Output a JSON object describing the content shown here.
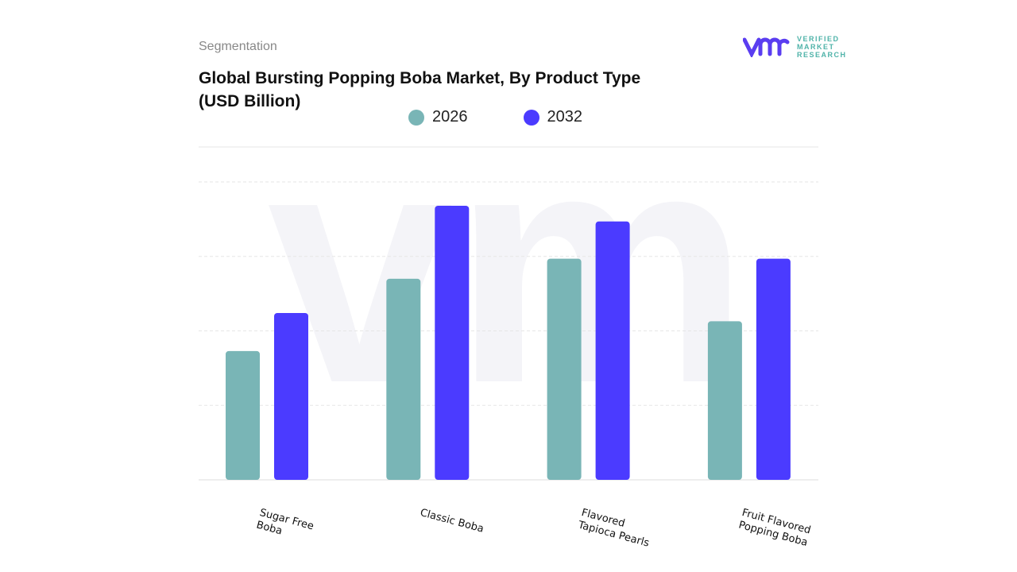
{
  "header": {
    "section": "Segmentation",
    "title": "Global Bursting Popping Boba Market, By Product Type (USD Billion)"
  },
  "logo": {
    "line1": "VERIFIED",
    "line2": "MARKET",
    "line3": "RESEARCH",
    "mark": "vmr"
  },
  "colors": {
    "s2026": "#79b5b6",
    "s2032": "#4b3bff",
    "grid": "#e6e6e6"
  },
  "chart_data": {
    "type": "bar",
    "title": "Global Bursting Popping Boba Market, By Product Type (USD Billion)",
    "categories": [
      "Sugar Free Boba",
      "Classic Boba",
      "Flavored Tapioca Pearls",
      "Fruit Flavored Popping Boba"
    ],
    "series": [
      {
        "name": "2026",
        "values": [
          1.73,
          2.7,
          2.97,
          2.13
        ]
      },
      {
        "name": "2032",
        "values": [
          2.24,
          3.68,
          3.47,
          2.97
        ]
      }
    ],
    "ylim": [
      0,
      4
    ],
    "grid": true,
    "legend": "top",
    "xlabel": "",
    "ylabel": ""
  }
}
